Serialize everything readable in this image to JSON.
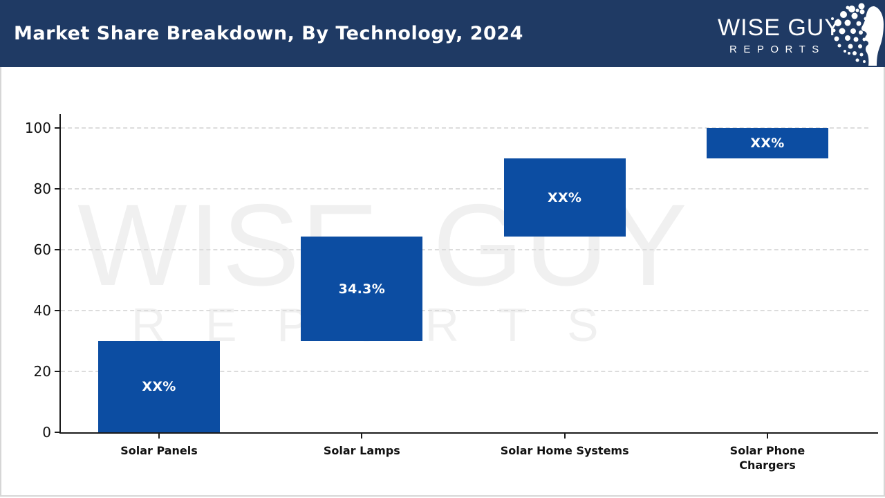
{
  "header": {
    "title": "Market Share Breakdown, By Technology, 2024",
    "logo": {
      "wordmark": "WISE GUY",
      "sub": "REPORTS"
    }
  },
  "watermark": {
    "wordmark": "WISE GUY",
    "sub": "REPORTS"
  },
  "colors": {
    "header_bg": "#1f3a64",
    "bar": "#0c4da2",
    "grid": "#dcdcdc",
    "axis": "#1a1a1a",
    "bar_label_text": "#ffffff",
    "watermark": "#f0f0f0",
    "frame_border": "#d6d6d6",
    "title_text": "#ffffff",
    "tick_text": "#111111"
  },
  "chart_data": {
    "type": "bar",
    "subtype": "floating-waterfall-segments",
    "title": "Market Share Breakdown, By Technology, 2024",
    "categories": [
      "Solar Panels",
      "Solar Lamps",
      "Solar Home Systems",
      "Solar Phone Chargers"
    ],
    "tick_labels": [
      "Solar Panels",
      "Solar Lamps",
      "Solar Home Systems",
      "Solar Phone\nChargers"
    ],
    "segments": [
      {
        "category": "Solar Panels",
        "start": 0,
        "end": 30,
        "value_label": "XX%"
      },
      {
        "category": "Solar Lamps",
        "start": 30,
        "end": 64.3,
        "value": 34.3,
        "value_label": "34.3%"
      },
      {
        "category": "Solar Home Systems",
        "start": 64.3,
        "end": 90,
        "value_label": "XX%"
      },
      {
        "category": "Solar Phone Chargers",
        "start": 90,
        "end": 100,
        "value_label": "XX%"
      }
    ],
    "yticks": [
      0,
      20,
      40,
      60,
      80,
      100
    ],
    "ylim": [
      0,
      104
    ],
    "xlabel": "",
    "ylabel": "",
    "grid": "horizontal-dashed",
    "legend": "none",
    "bar_color": "#0c4da2"
  }
}
